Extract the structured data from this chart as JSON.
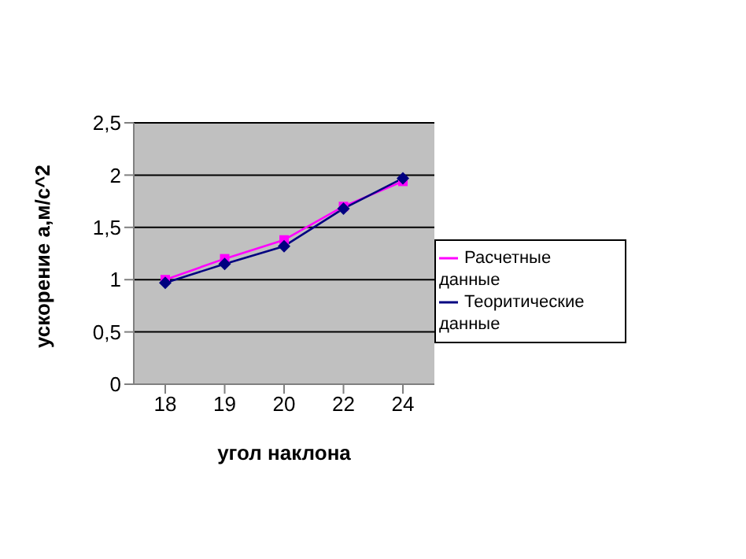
{
  "chart_data": {
    "type": "line",
    "xlabel": "угол наклона",
    "ylabel": "ускорение а,м/с^2",
    "categories": [
      "18",
      "19",
      "20",
      "22",
      "24"
    ],
    "series": [
      {
        "name": "Расчетные данные",
        "color": "#ff00ff",
        "marker": "square",
        "values": [
          1.0,
          1.2,
          1.38,
          1.7,
          1.94
        ]
      },
      {
        "name": "Теоритические данные",
        "color": "#000080",
        "marker": "diamond",
        "values": [
          0.97,
          1.15,
          1.32,
          1.68,
          1.97
        ]
      }
    ],
    "ylim": [
      0,
      2.5
    ],
    "yticks": [
      0,
      {
        "value": 0.5,
        "label": "0,5"
      },
      1,
      {
        "value": 1.5,
        "label": "1,5"
      },
      2,
      {
        "value": 2.5,
        "label": "2,5"
      }
    ],
    "grid": "y",
    "legend": "right"
  }
}
